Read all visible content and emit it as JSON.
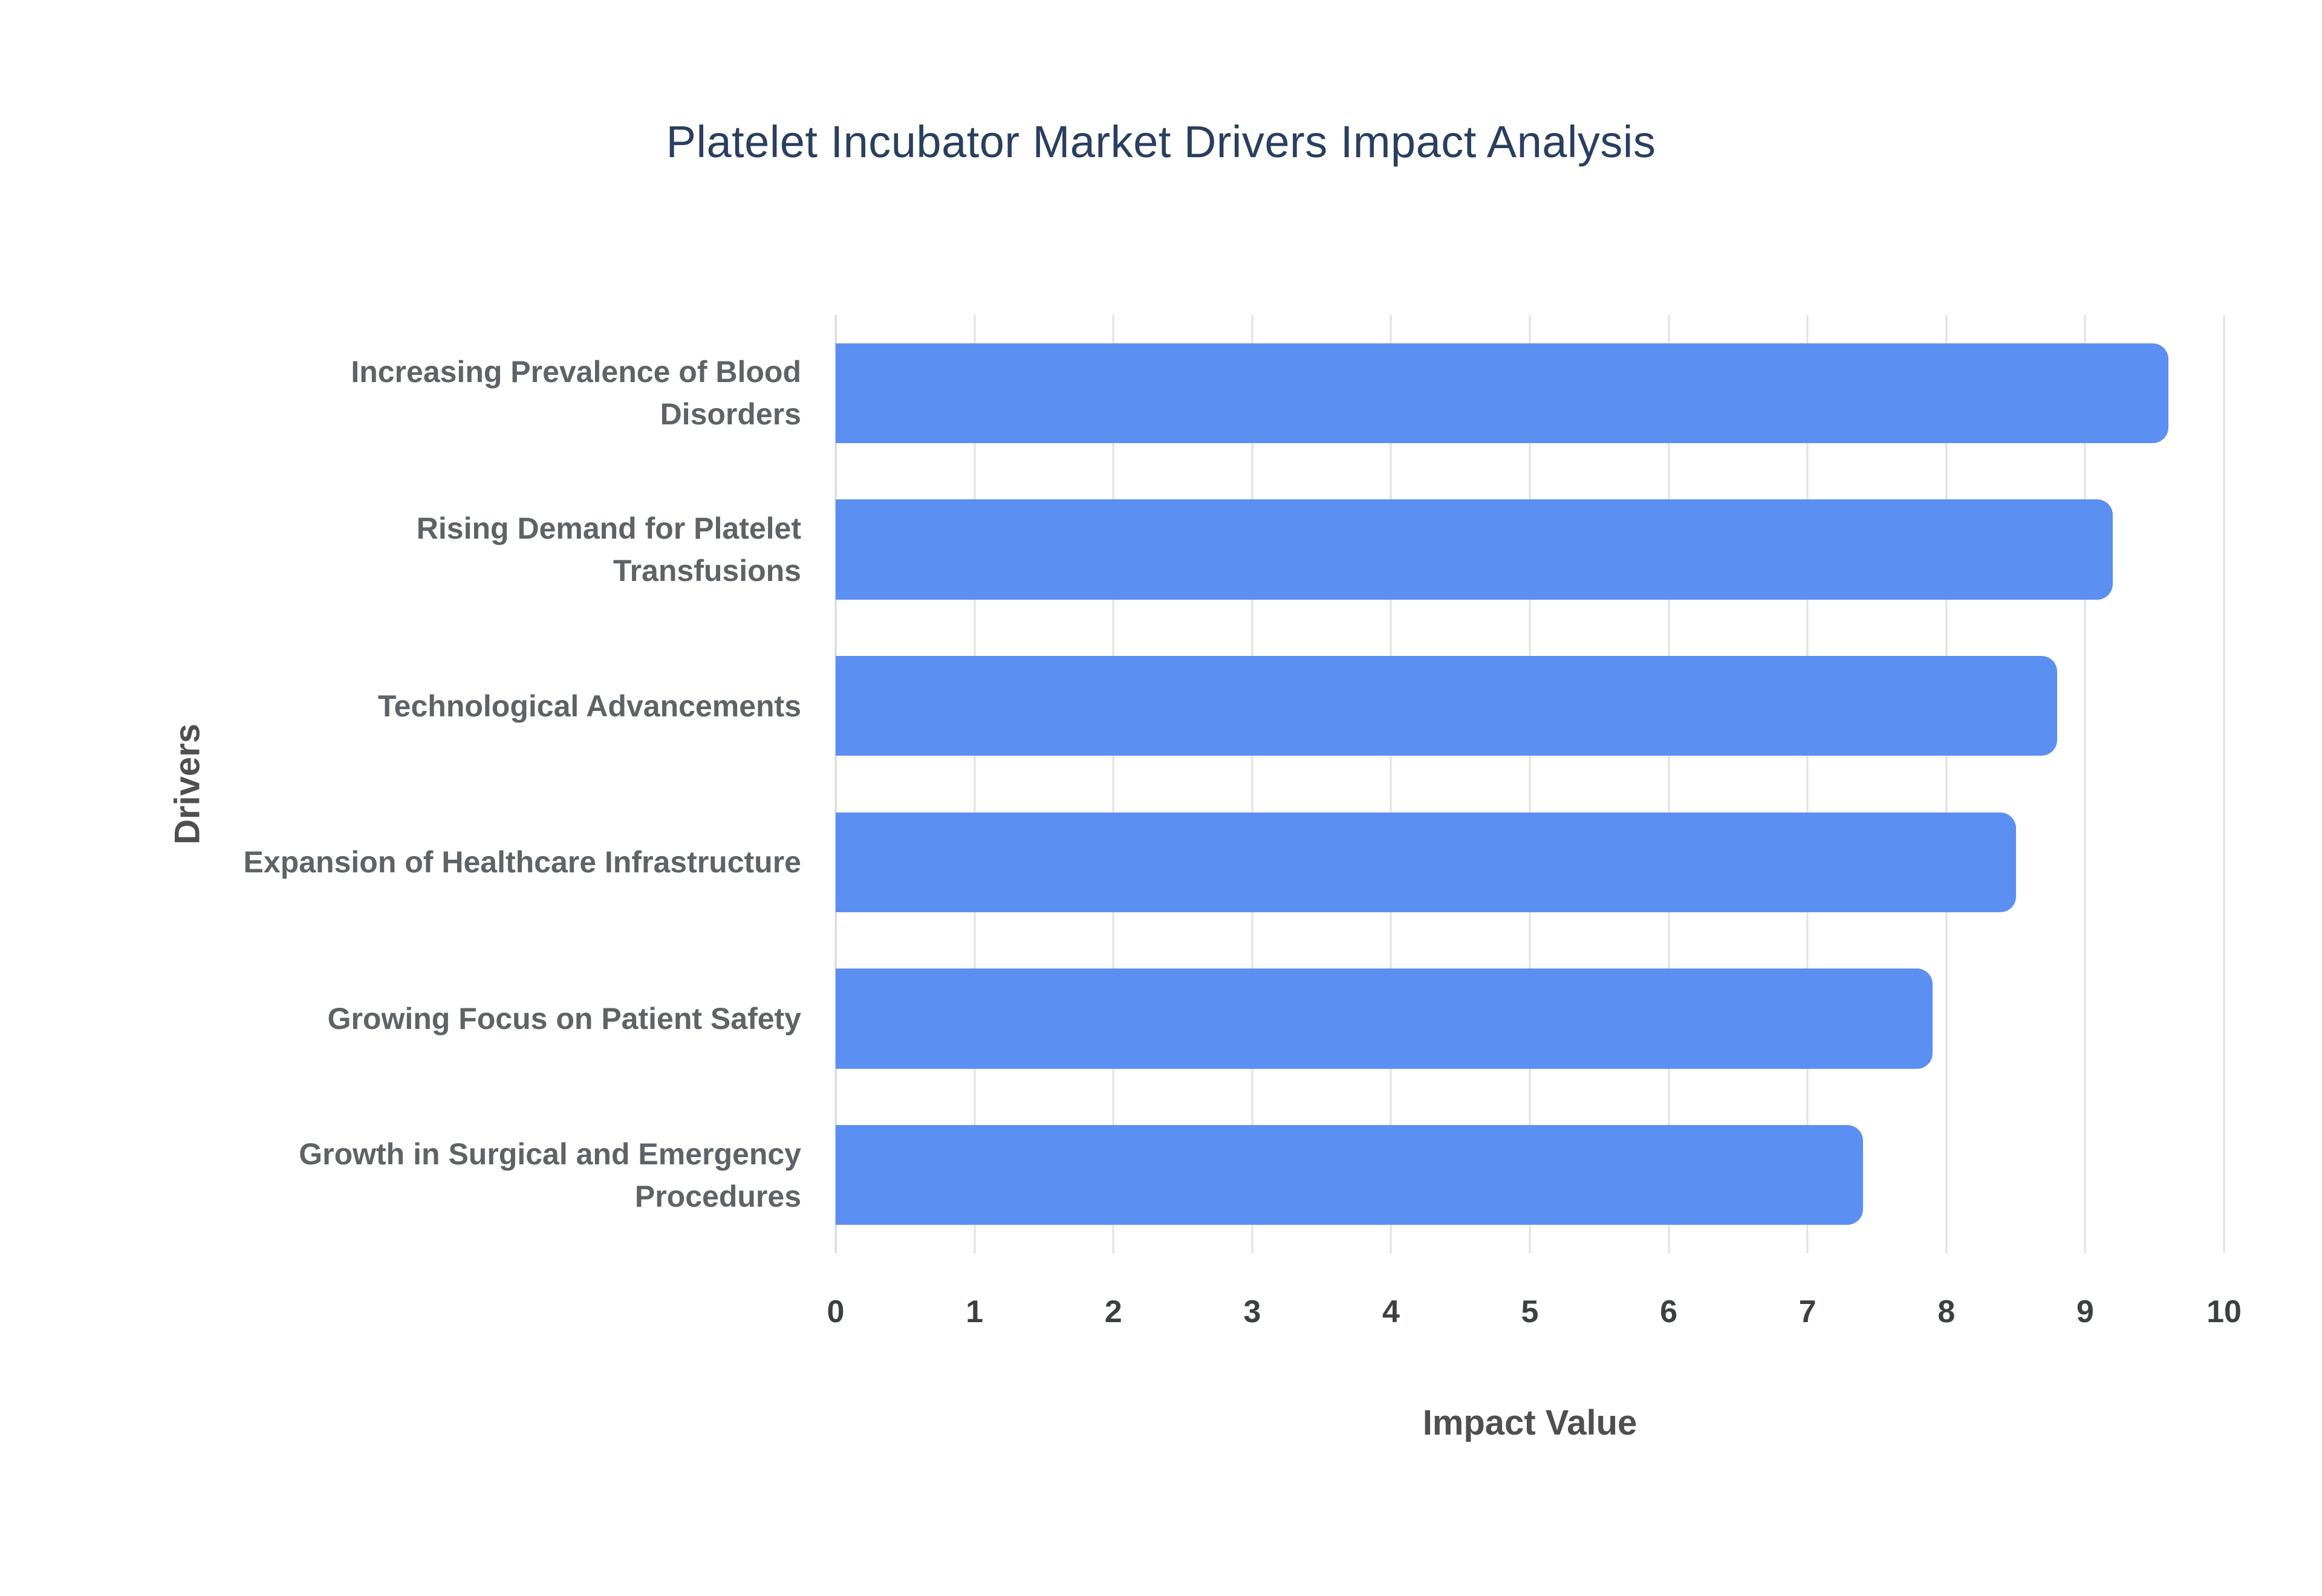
{
  "title": "Platelet Incubator Market Drivers Impact Analysis",
  "chart_data": {
    "type": "bar",
    "orientation": "horizontal",
    "title": "Platelet Incubator Market Drivers Impact Analysis",
    "categories": [
      "Increasing Prevalence of Blood Disorders",
      "Rising Demand for Platelet Transfusions",
      "Technological Advancements",
      "Expansion of Healthcare Infrastructure",
      "Growing Focus on Patient Safety",
      "Growth in Surgical and Emergency Procedures"
    ],
    "values": [
      9.6,
      9.2,
      8.8,
      8.5,
      7.9,
      7.4
    ],
    "xlabel": "Impact Value",
    "ylabel": "Drivers",
    "xlim": [
      0,
      10
    ],
    "xticks": [
      0,
      1,
      2,
      3,
      4,
      5,
      6,
      7,
      8,
      9,
      10
    ],
    "grid": true,
    "legend": "none",
    "bar_color": "#5b8ff2",
    "grid_color": "#e2e2e2",
    "title_color": "#2a3f5f",
    "label_color": "#5f6368",
    "tick_color": "#3c4043"
  }
}
